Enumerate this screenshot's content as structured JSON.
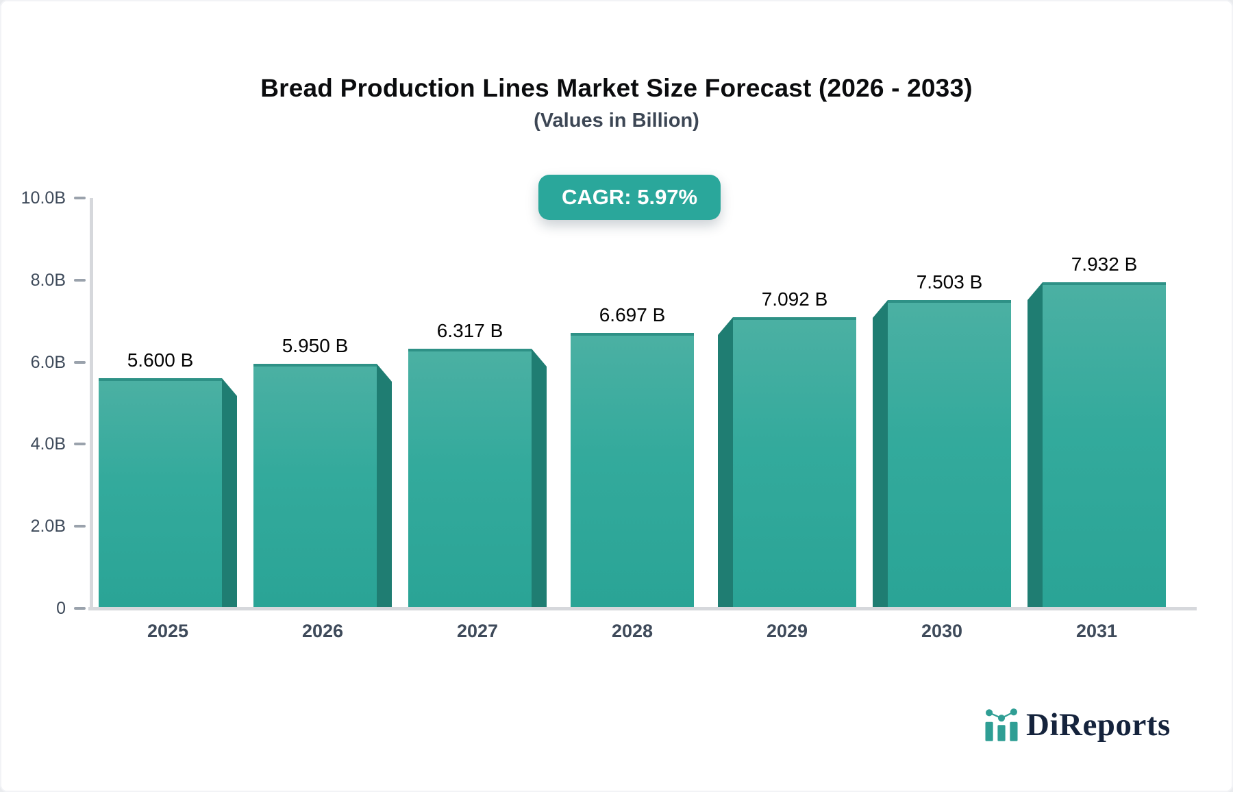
{
  "page": {
    "title": "Bread Production Lines Market Size Forecast (2026 - 2033)",
    "subtitle": "(Values in Billion)",
    "cagr_badge": "CAGR: 5.97%",
    "brand": {
      "name": "DiReports",
      "icon": "mini-bar-chart-icon"
    }
  },
  "colors": {
    "bar_face_top": "#4bb0a3",
    "bar_face_bottom": "#2aa496",
    "bar_top_border": "#2e9186",
    "bar_side_dark": "#1f7d72",
    "badge_bg": "#2aa79b",
    "badge_text": "#ffffff",
    "axis_line": "#d6d8dc",
    "tick_dash": "#9aa2ac",
    "axis_label": "#3e4a5a",
    "value_label": "#050505",
    "brand_navy": "#15233c",
    "brand_teal": "#2f9e94"
  },
  "chart_data": {
    "type": "bar",
    "title": "Bread Production Lines Market Size Forecast (2026 - 2033)",
    "subtitle": "(Values in Billion)",
    "unit": "Billion",
    "cagr": "5.97%",
    "categories": [
      "2025",
      "2026",
      "2027",
      "2028",
      "2029",
      "2030",
      "2031"
    ],
    "values": [
      5.6,
      5.95,
      6.317,
      6.697,
      7.092,
      7.503,
      7.932
    ],
    "value_labels": [
      "5.600 B",
      "5.950 B",
      "6.317 B",
      "6.697 B",
      "7.092 B",
      "7.503 B",
      "7.932 B"
    ],
    "y_tick_labels": [
      "10.0B",
      "8.0B",
      "6.0B",
      "4.0B",
      "2.0B",
      "0"
    ],
    "y_tick_values": [
      10,
      8,
      6,
      4,
      2,
      0
    ],
    "ylim": [
      0,
      10
    ],
    "xlabel": "",
    "ylabel": "",
    "grid": false,
    "legend": false,
    "bar_style": "3d-extruded",
    "depth_sides": [
      "right",
      "right",
      "right",
      "none",
      "left",
      "left",
      "left"
    ]
  }
}
